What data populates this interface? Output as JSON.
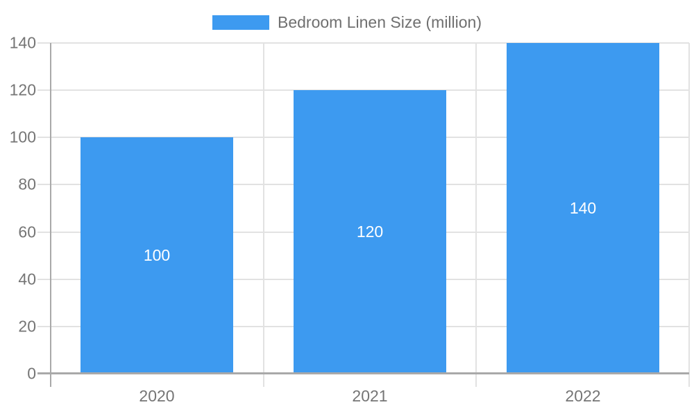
{
  "chart_data": {
    "type": "bar",
    "title": "",
    "legend_label": "Bedroom Linen Size (million)",
    "legend_position": "top",
    "categories": [
      "2020",
      "2021",
      "2022"
    ],
    "values": [
      100,
      120,
      140
    ],
    "y_ticks": [
      0,
      20,
      40,
      60,
      80,
      100,
      120,
      140
    ],
    "ylim": [
      0,
      140
    ],
    "grid": true,
    "colors": {
      "bar": "#3D9AF0",
      "axis_line": "#A9A9A9",
      "gridline": "#E2E2E2",
      "tick_label": "#757575",
      "legend_text": "#6F6F6F",
      "data_label": "#FFFFFF",
      "background": "#FFFFFF"
    }
  }
}
